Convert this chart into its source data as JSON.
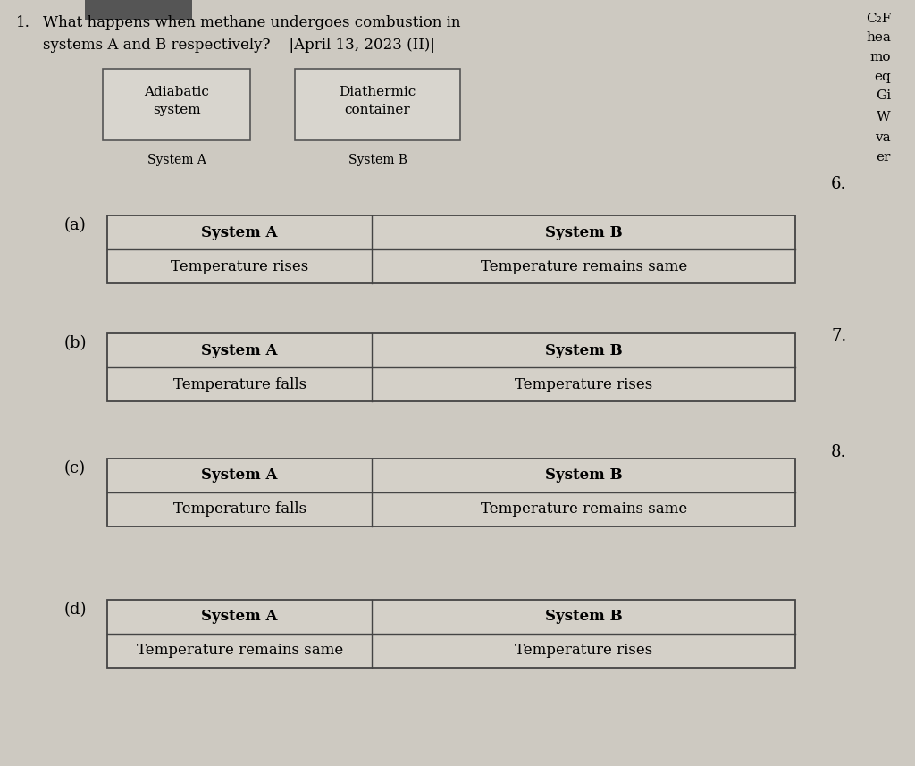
{
  "background_color": "#d0ccc4",
  "page_color": "#d8d4cc",
  "question_number": "1.",
  "options": [
    {
      "letter": "(a)",
      "col1_header": "System A",
      "col2_header": "System B",
      "col1_val": "Temperature rises",
      "col2_val": "Temperature remains same"
    },
    {
      "letter": "(b)",
      "col1_header": "System A",
      "col2_header": "System B",
      "col1_val": "Temperature falls",
      "col2_val": "Temperature rises"
    },
    {
      "letter": "(c)",
      "col1_header": "System A",
      "col2_header": "System B",
      "col1_val": "Temperature falls",
      "col2_val": "Temperature remains same"
    },
    {
      "letter": "(d)",
      "col1_header": "System A",
      "col2_header": "System B",
      "col1_val": "Temperature remains same",
      "col2_val": "Temperature rises"
    }
  ],
  "right_col_texts": [
    "C₂F",
    "hea",
    "mo",
    "eq",
    "Gi",
    "W",
    "va",
    "er"
  ],
  "right_numbers": [
    "6.",
    "7.",
    "8."
  ],
  "header_fontsize": 12,
  "body_fontsize": 12,
  "question_fontsize": 12,
  "letter_fontsize": 13
}
